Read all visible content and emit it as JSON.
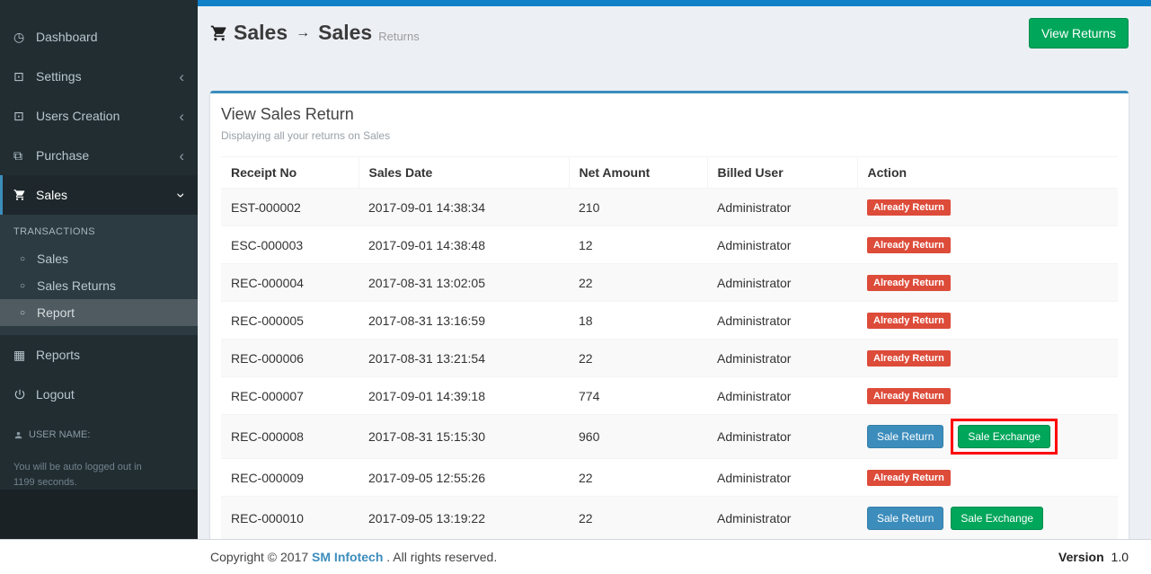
{
  "colors": {
    "accent_blue": "#3c8dbc",
    "topbar_blue": "#1080c7",
    "green": "#00a65a",
    "red": "#dd4b39",
    "sidebar_dark": "#222d32",
    "sidebar_submenu": "#2c3b41",
    "highlight_red": "#ff0000"
  },
  "icons": {
    "dashboard": "◷",
    "monitor": "⊡",
    "copy": "⧉",
    "circle": "○",
    "grid": "▦",
    "chevron_left": "‹",
    "chevron_right": "›",
    "arrow": "→"
  },
  "sidebar": {
    "items": [
      {
        "label": "Dashboard"
      },
      {
        "label": "Settings"
      },
      {
        "label": "Users Creation"
      },
      {
        "label": "Purchase"
      },
      {
        "label": "Sales"
      }
    ],
    "transactions_label": "TRANSACTIONS",
    "sub_items": [
      {
        "label": "Sales"
      },
      {
        "label": "Sales Returns"
      },
      {
        "label": "Report"
      }
    ],
    "reports_label": "Reports",
    "logout_label": "Logout",
    "user_name_label": "USER NAME:",
    "auto_logout_text": "You will be auto logged out in 1199 seconds."
  },
  "header": {
    "breadcrumb_primary": "Sales",
    "breadcrumb_secondary": "Sales",
    "breadcrumb_suffix": "Returns",
    "view_returns_button": "View Returns"
  },
  "card": {
    "title": "View Sales Return",
    "subtitle": "Displaying all your returns on Sales"
  },
  "table": {
    "columns": [
      "Receipt No",
      "Sales Date",
      "Net Amount",
      "Billed User",
      "Action"
    ],
    "action_labels": {
      "already_return": "Already Return",
      "sale_return": "Sale Return",
      "sale_exchange": "Sale Exchange"
    },
    "rows": [
      {
        "receipt_no": "EST-000002",
        "sales_date": "2017-09-01 14:38:34",
        "net_amount": "210",
        "billed_user": "Administrator",
        "action": "already_return",
        "highlight_exchange": false
      },
      {
        "receipt_no": "ESC-000003",
        "sales_date": "2017-09-01 14:38:48",
        "net_amount": "12",
        "billed_user": "Administrator",
        "action": "already_return",
        "highlight_exchange": false
      },
      {
        "receipt_no": "REC-000004",
        "sales_date": "2017-08-31 13:02:05",
        "net_amount": "22",
        "billed_user": "Administrator",
        "action": "already_return",
        "highlight_exchange": false
      },
      {
        "receipt_no": "REC-000005",
        "sales_date": "2017-08-31 13:16:59",
        "net_amount": "18",
        "billed_user": "Administrator",
        "action": "already_return",
        "highlight_exchange": false
      },
      {
        "receipt_no": "REC-000006",
        "sales_date": "2017-08-31 13:21:54",
        "net_amount": "22",
        "billed_user": "Administrator",
        "action": "already_return",
        "highlight_exchange": false
      },
      {
        "receipt_no": "REC-000007",
        "sales_date": "2017-09-01 14:39:18",
        "net_amount": "774",
        "billed_user": "Administrator",
        "action": "already_return",
        "highlight_exchange": false
      },
      {
        "receipt_no": "REC-000008",
        "sales_date": "2017-08-31 15:15:30",
        "net_amount": "960",
        "billed_user": "Administrator",
        "action": "return_exchange",
        "highlight_exchange": true
      },
      {
        "receipt_no": "REC-000009",
        "sales_date": "2017-09-05 12:55:26",
        "net_amount": "22",
        "billed_user": "Administrator",
        "action": "already_return",
        "highlight_exchange": false
      },
      {
        "receipt_no": "REC-000010",
        "sales_date": "2017-09-05 13:19:22",
        "net_amount": "22",
        "billed_user": "Administrator",
        "action": "return_exchange",
        "highlight_exchange": false
      }
    ]
  },
  "footer": {
    "copyright_prefix": "Copyright © 2017 ",
    "brand": "SM Infotech",
    "copyright_suffix": ". All rights reserved.",
    "version_label": "Version",
    "version_value": "1.0"
  }
}
